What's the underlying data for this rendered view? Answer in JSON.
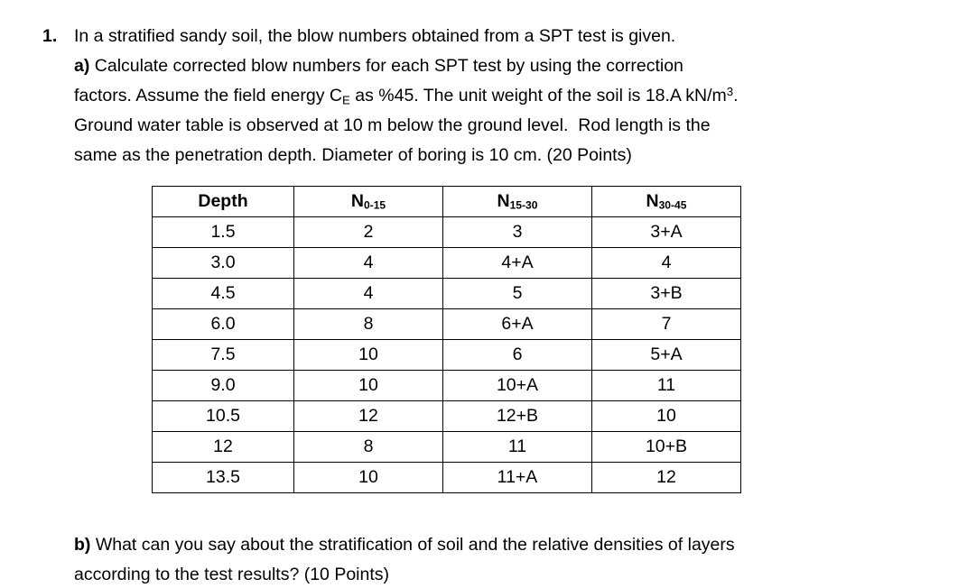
{
  "question": {
    "number": "1.",
    "intro": "In a stratified sandy soil, the blow numbers obtained from a SPT test is given.",
    "part_a": {
      "label": "a)",
      "line2_rest": " Calculate corrected blow numbers for each SPT test by using the correction",
      "line3_seg1": "factors. Assume the field energy C",
      "line3_sub": "E",
      "line3_seg2": " as %45. The unit weight of the soil is 18.A kN/m",
      "line3_sup": "3",
      "line3_seg3": ".",
      "line4": "Ground water table is observed at 10 m below the ground level.  Rod length is the",
      "line5": "same as the penetration depth. Diameter of boring is 10 cm. (20 Points)"
    },
    "part_b": {
      "label": "b)",
      "line1_rest": " What can you say about the stratification of soil and the relative densities of layers",
      "line2": "according to the test results? (10 Points)"
    }
  },
  "table": {
    "headers": [
      {
        "main": "Depth",
        "sub": ""
      },
      {
        "main": "N",
        "sub": "0-15"
      },
      {
        "main": "N",
        "sub": "15-30"
      },
      {
        "main": "N",
        "sub": "30-45"
      }
    ],
    "rows": [
      [
        "1.5",
        "2",
        "3",
        "3+A"
      ],
      [
        "3.0",
        "4",
        "4+A",
        "4"
      ],
      [
        "4.5",
        "4",
        "5",
        "3+B"
      ],
      [
        "6.0",
        "8",
        "6+A",
        "7"
      ],
      [
        "7.5",
        "10",
        "6",
        "5+A"
      ],
      [
        "9.0",
        "10",
        "10+A",
        "11"
      ],
      [
        "10.5",
        "12",
        "12+B",
        "10"
      ],
      [
        "12",
        "8",
        "11",
        "10+B"
      ],
      [
        "13.5",
        "10",
        "11+A",
        "12"
      ]
    ]
  }
}
